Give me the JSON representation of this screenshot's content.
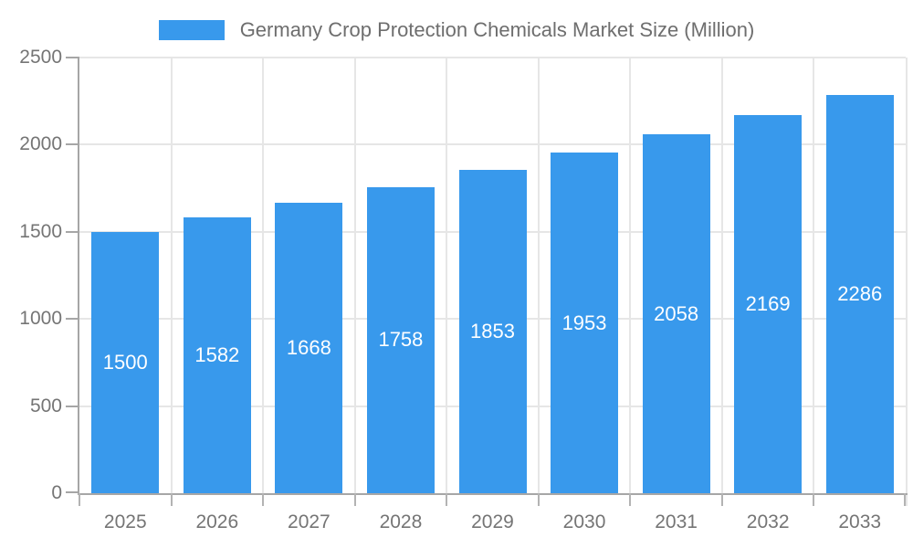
{
  "legend": {
    "label": "Germany Crop Protection Chemicals Market Size (Million)"
  },
  "chart_data": {
    "type": "bar",
    "title": "Germany Crop Protection Chemicals Market Size (Million)",
    "categories": [
      "2025",
      "2026",
      "2027",
      "2028",
      "2029",
      "2030",
      "2031",
      "2032",
      "2033"
    ],
    "values": [
      1500,
      1582,
      1668,
      1758,
      1853,
      1953,
      2058,
      2169,
      2286
    ],
    "xlabel": "",
    "ylabel": "",
    "ylim": [
      0,
      2500
    ],
    "y_ticks": [
      0,
      500,
      1000,
      1500,
      2000,
      2500
    ],
    "grid": true,
    "legend_position": "top-center",
    "bar_value_labels_visible": true,
    "colors": {
      "bar": "#3899ec",
      "bar_label": "#ffffff",
      "axis_text": "#757575",
      "legend_text": "#6e6e6e",
      "gridline": "#e6e6e6",
      "axis_line": "#a6a6a6"
    }
  }
}
